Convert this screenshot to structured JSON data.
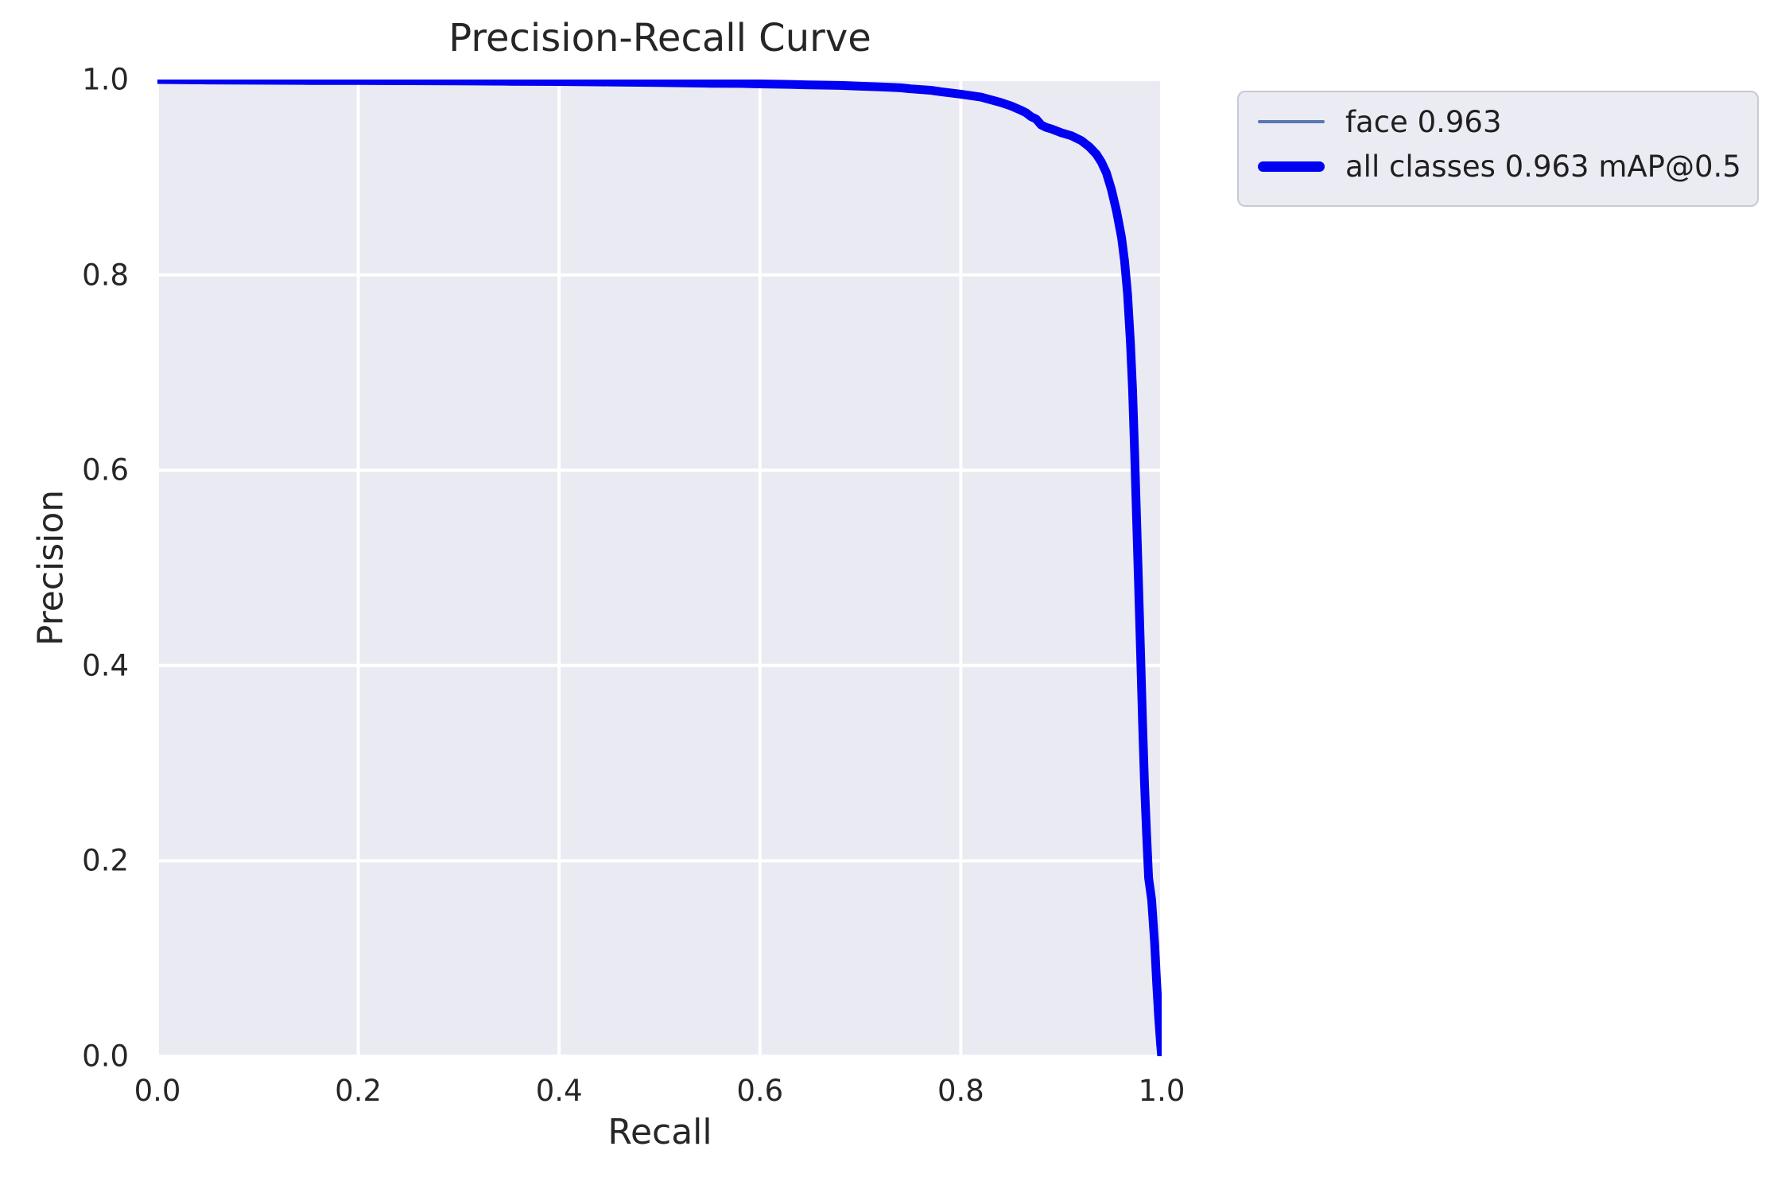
{
  "colors": {
    "page_bg": "#ffffff",
    "plot_bg": "#eaeaf2",
    "grid": "#ffffff",
    "text": "#262626",
    "legend_bg": "#ebebf3",
    "legend_border": "#c8c9d4",
    "face_line": "#5878b4",
    "all_classes_line": "#0000f2"
  },
  "chart_data": {
    "type": "line",
    "title": "Precision-Recall Curve",
    "xlabel": "Recall",
    "ylabel": "Precision",
    "xlim": [
      0.0,
      1.0
    ],
    "ylim": [
      0.0,
      1.0
    ],
    "x_tick_labels": [
      "0.0",
      "0.2",
      "0.4",
      "0.6",
      "0.8",
      "1.0"
    ],
    "y_tick_labels": [
      "1.0",
      "0.8",
      "0.6",
      "0.4",
      "0.2",
      "0.0"
    ],
    "grid": true,
    "legend_position": "upper right, outside axes",
    "series": [
      {
        "name": "face",
        "label": "face 0.963",
        "ap": 0.963,
        "color": "#5878b4",
        "linewidth": 3.5
      },
      {
        "name": "all classes",
        "label": "all classes 0.963 mAP@0.5",
        "map50": 0.963,
        "color": "#0000f2",
        "linewidth": 11
      }
    ],
    "curve_points_note": "single class (face), so both series trace the identical curve; pairs are [recall, precision]",
    "curve_points": [
      [
        0.0,
        1.0
      ],
      [
        0.05,
        0.9995
      ],
      [
        0.1,
        0.9993
      ],
      [
        0.15,
        0.999
      ],
      [
        0.2,
        0.999
      ],
      [
        0.25,
        0.9988
      ],
      [
        0.3,
        0.9985
      ],
      [
        0.35,
        0.9982
      ],
      [
        0.4,
        0.998
      ],
      [
        0.45,
        0.9975
      ],
      [
        0.5,
        0.997
      ],
      [
        0.55,
        0.9962
      ],
      [
        0.58,
        0.996
      ],
      [
        0.6,
        0.9955
      ],
      [
        0.63,
        0.995
      ],
      [
        0.65,
        0.9945
      ],
      [
        0.68,
        0.994
      ],
      [
        0.7,
        0.9932
      ],
      [
        0.72,
        0.9925
      ],
      [
        0.74,
        0.9915
      ],
      [
        0.75,
        0.9905
      ],
      [
        0.77,
        0.989
      ],
      [
        0.78,
        0.9875
      ],
      [
        0.8,
        0.985
      ],
      [
        0.82,
        0.982
      ],
      [
        0.84,
        0.9765
      ],
      [
        0.85,
        0.973
      ],
      [
        0.86,
        0.9685
      ],
      [
        0.865,
        0.966
      ],
      [
        0.87,
        0.962
      ],
      [
        0.875,
        0.9595
      ],
      [
        0.878,
        0.956
      ],
      [
        0.88,
        0.9535
      ],
      [
        0.885,
        0.951
      ],
      [
        0.89,
        0.9495
      ],
      [
        0.9,
        0.9455
      ],
      [
        0.91,
        0.9425
      ],
      [
        0.92,
        0.9375
      ],
      [
        0.928,
        0.931
      ],
      [
        0.935,
        0.9235
      ],
      [
        0.94,
        0.9155
      ],
      [
        0.945,
        0.9045
      ],
      [
        0.95,
        0.8875
      ],
      [
        0.955,
        0.8655
      ],
      [
        0.96,
        0.8385
      ],
      [
        0.963,
        0.8145
      ],
      [
        0.966,
        0.7805
      ],
      [
        0.969,
        0.7295
      ],
      [
        0.971,
        0.6825
      ],
      [
        0.973,
        0.6205
      ],
      [
        0.975,
        0.552
      ],
      [
        0.977,
        0.4815
      ],
      [
        0.979,
        0.4125
      ],
      [
        0.981,
        0.341
      ],
      [
        0.983,
        0.2775
      ],
      [
        0.985,
        0.2265
      ],
      [
        0.987,
        0.1825
      ],
      [
        0.99,
        0.16
      ],
      [
        0.993,
        0.115
      ],
      [
        0.995,
        0.075
      ],
      [
        0.997,
        0.04
      ],
      [
        0.999,
        0.012
      ],
      [
        1.0,
        0.0
      ]
    ]
  }
}
